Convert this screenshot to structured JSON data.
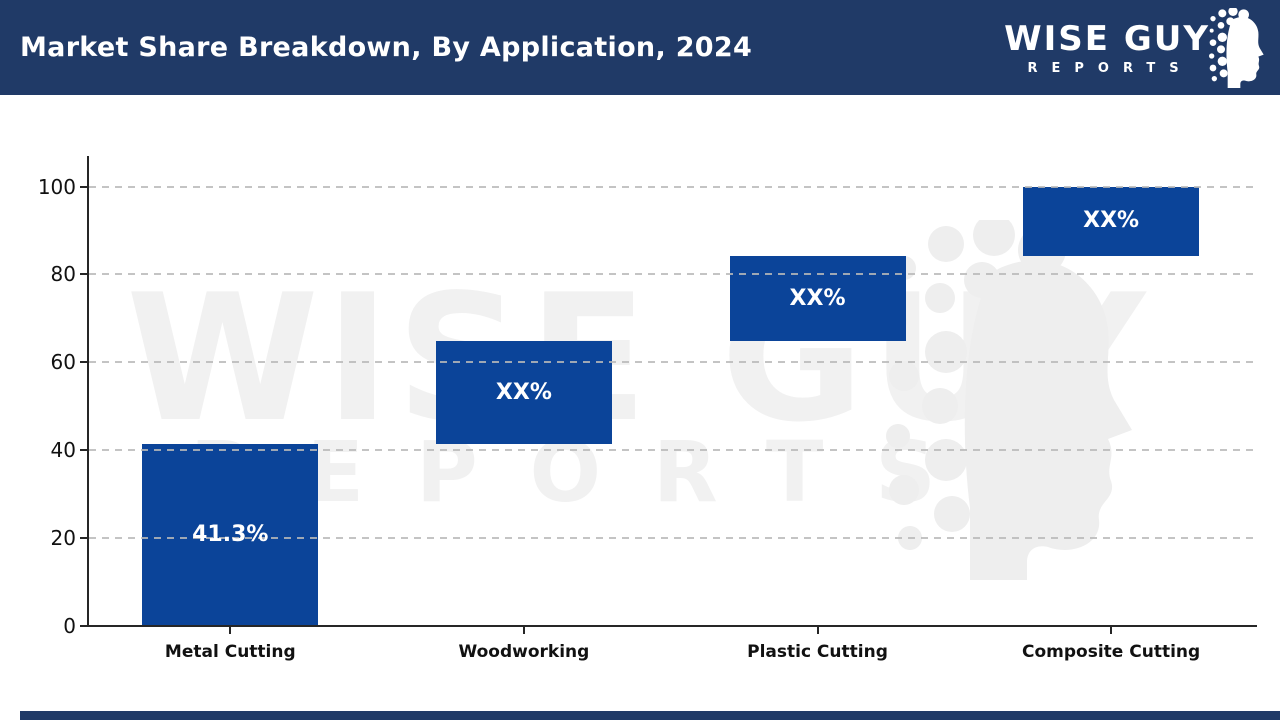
{
  "header": {
    "title": "Market Share Breakdown, By Application, 2024",
    "logo": {
      "line1": "WISE GUY",
      "line2": "REPORTS"
    }
  },
  "watermark": {
    "line1": "WISE GUY",
    "line2": "REPORTS"
  },
  "colors": {
    "header_bg": "#203a67",
    "footer_bg": "#203a67",
    "bar": "#0b4499",
    "bar_label": "#ffffff",
    "gridline": "#bbbbbb",
    "axis": "#262626",
    "tick_label": "#111111",
    "watermark": "#f1f1f1",
    "title_text": "#ffffff"
  },
  "chart_data": {
    "type": "bar",
    "subtype": "waterfall",
    "title": "Market Share Breakdown, By Application, 2024",
    "categories": [
      "Metal Cutting",
      "Woodworking",
      "Plastic Cutting",
      "Composite Cutting"
    ],
    "segments": [
      {
        "category": "Metal Cutting",
        "start": 0,
        "end": 41.3,
        "label": "41.3%"
      },
      {
        "category": "Woodworking",
        "start": 41.3,
        "end": 64.7,
        "label": "XX%"
      },
      {
        "category": "Plastic Cutting",
        "start": 64.7,
        "end": 84.2,
        "label": "XX%"
      },
      {
        "category": "Composite Cutting",
        "start": 84.2,
        "end": 100,
        "label": "XX%"
      }
    ],
    "ylim": [
      0,
      100
    ],
    "yticks": [
      0,
      20,
      40,
      60,
      80,
      100
    ],
    "xlabel": "",
    "ylabel": "",
    "grid": "horizontal-dashed",
    "legend": "none"
  }
}
